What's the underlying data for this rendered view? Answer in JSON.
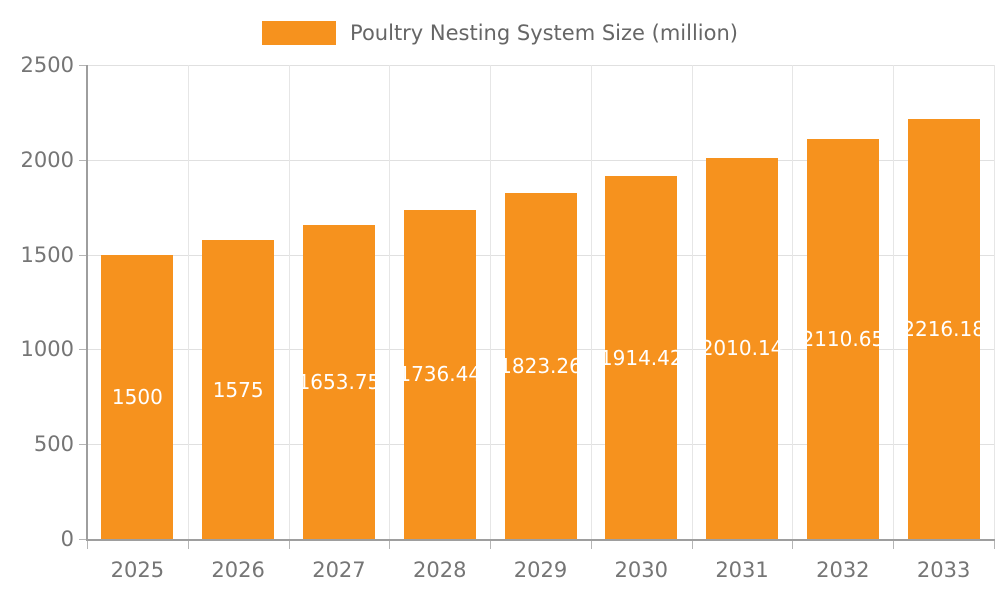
{
  "chart_data": {
    "type": "bar",
    "title": "Poultry Nesting System Size (million)",
    "legend": [
      "Poultry Nesting System Size (million)"
    ],
    "legend_position": "top",
    "categories": [
      "2025",
      "2026",
      "2027",
      "2028",
      "2029",
      "2030",
      "2031",
      "2032",
      "2033"
    ],
    "series": [
      {
        "name": "Poultry Nesting System Size (million)",
        "values": [
          1500,
          1575,
          1653.75,
          1736.44,
          1823.26,
          1914.42,
          2010.14,
          2110.65,
          2216.18
        ]
      }
    ],
    "value_labels": [
      "1500",
      "1575",
      "1653.75",
      "1736.44",
      "1823.26",
      "1914.42",
      "2010.14",
      "2110.65",
      "2216.18"
    ],
    "xlabel": "",
    "ylabel": "",
    "ylim": [
      0,
      2500
    ],
    "yticks": [
      0,
      500,
      1000,
      1500,
      2000,
      2500
    ],
    "grid": true,
    "colors": {
      "bar": "#F6921E",
      "bar_value_text": "#ffffff",
      "grid_line": "#e0e0e0",
      "axis_line": "#9e9e9e",
      "tick_text": "#757575",
      "legend_text": "#666666",
      "background": "#ffffff"
    }
  }
}
